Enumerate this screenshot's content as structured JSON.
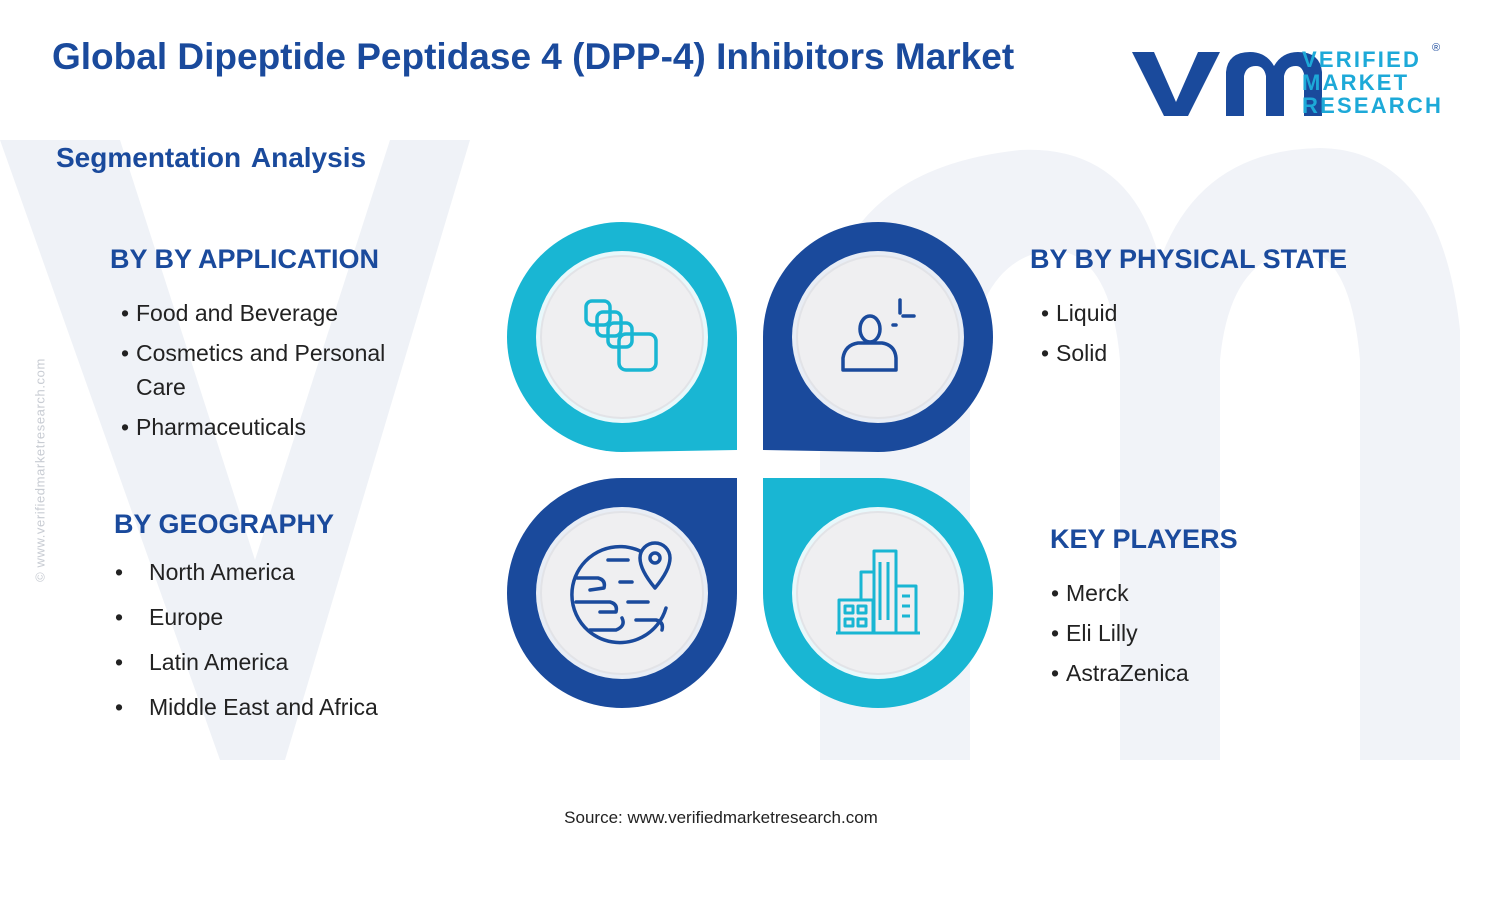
{
  "header": {
    "title": "Global Dipeptide Peptidase 4 (DPP-4) Inhibitors Market",
    "subtitle": "Segmentation Analysis"
  },
  "logo": {
    "lines": [
      "VERIFIED",
      "MARKET",
      "RESEARCH"
    ],
    "registered": "®",
    "colors": {
      "dark": "#1a4a9c",
      "light": "#1da9d8"
    }
  },
  "side_url": "© www.verifiedmarketresearch.com",
  "segments": {
    "application": {
      "heading": "BY BY APPLICATION",
      "items": [
        "Food and Beverage",
        "Cosmetics and Personal Care",
        "Pharmaceuticals"
      ],
      "icon": "blocks-icon"
    },
    "physical_state": {
      "heading": "BY BY PHYSICAL STATE",
      "items": [
        "Liquid",
        "Solid"
      ],
      "icon": "person-plus-icon"
    },
    "geography": {
      "heading": "BY GEOGRAPHY",
      "items": [
        "North America",
        "Europe",
        "Latin America",
        "Middle East and Africa"
      ],
      "icon": "globe-pin-icon"
    },
    "key_players": {
      "heading": "KEY PLAYERS",
      "items": [
        "Merck",
        "Eli Lilly",
        "AstraZenica"
      ],
      "icon": "buildings-icon"
    }
  },
  "colors": {
    "dark_blue": "#1a4a9c",
    "teal": "#19b6d3",
    "watermark": "#eef1f6",
    "circle_fill": "#efeff1"
  },
  "footer": {
    "source": "Source: www.verifiedmarketresearch.com"
  }
}
